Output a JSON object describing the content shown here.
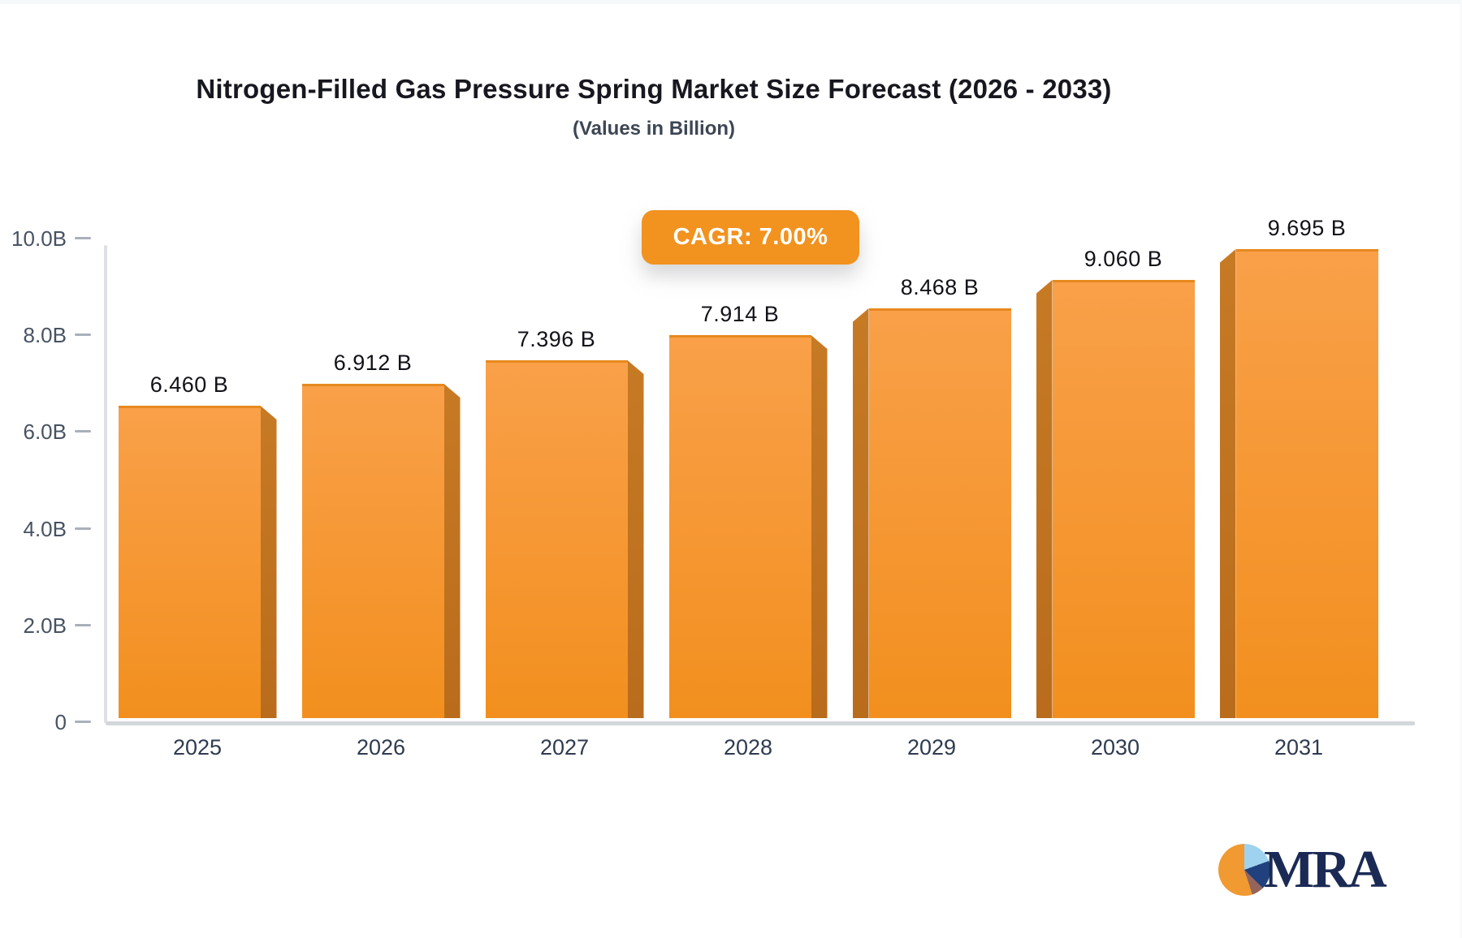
{
  "title": "Nitrogen-Filled Gas Pressure Spring Market Size Forecast (2026 - 2033)",
  "subtitle": "(Values in Billion)",
  "badge": {
    "label": "CAGR: 7.00%",
    "color": "#f2921f"
  },
  "logo": {
    "text": "MRA",
    "icon": "pie-chart-icon",
    "text_color": "#1b2a55",
    "icon_colors": [
      "#f09a31",
      "#9fd2ee",
      "#21407e",
      "#96655a"
    ]
  },
  "chart_data": {
    "type": "bar",
    "categories": [
      "2025",
      "2026",
      "2027",
      "2028",
      "2029",
      "2030",
      "2031"
    ],
    "values": [
      6.46,
      6.912,
      7.396,
      7.914,
      8.468,
      9.06,
      9.695
    ],
    "bar_labels": [
      "6.460 B",
      "6.912 B",
      "7.396 B",
      "7.914 B",
      "8.468 B",
      "9.060 B",
      "9.695 B"
    ],
    "title": "Nitrogen-Filled Gas Pressure Spring Market Size Forecast (2026 - 2033)",
    "subtitle": "(Values in Billion)",
    "xlabel": "",
    "ylabel": "",
    "y_ticks": [
      {
        "value": 0,
        "label": "0"
      },
      {
        "value": 2,
        "label": "2.0B"
      },
      {
        "value": 4,
        "label": "4.0B"
      },
      {
        "value": 6,
        "label": "6.0B"
      },
      {
        "value": 8,
        "label": "8.0B"
      },
      {
        "value": 10,
        "label": "10.0B"
      }
    ],
    "ylim": [
      0,
      10
    ],
    "grid": false,
    "legend": false,
    "bar_color_top": "#f9a049",
    "bar_color_bottom": "#f28f1e",
    "bar_side_color": "#bf7020",
    "annotation": "CAGR: 7.00%"
  }
}
